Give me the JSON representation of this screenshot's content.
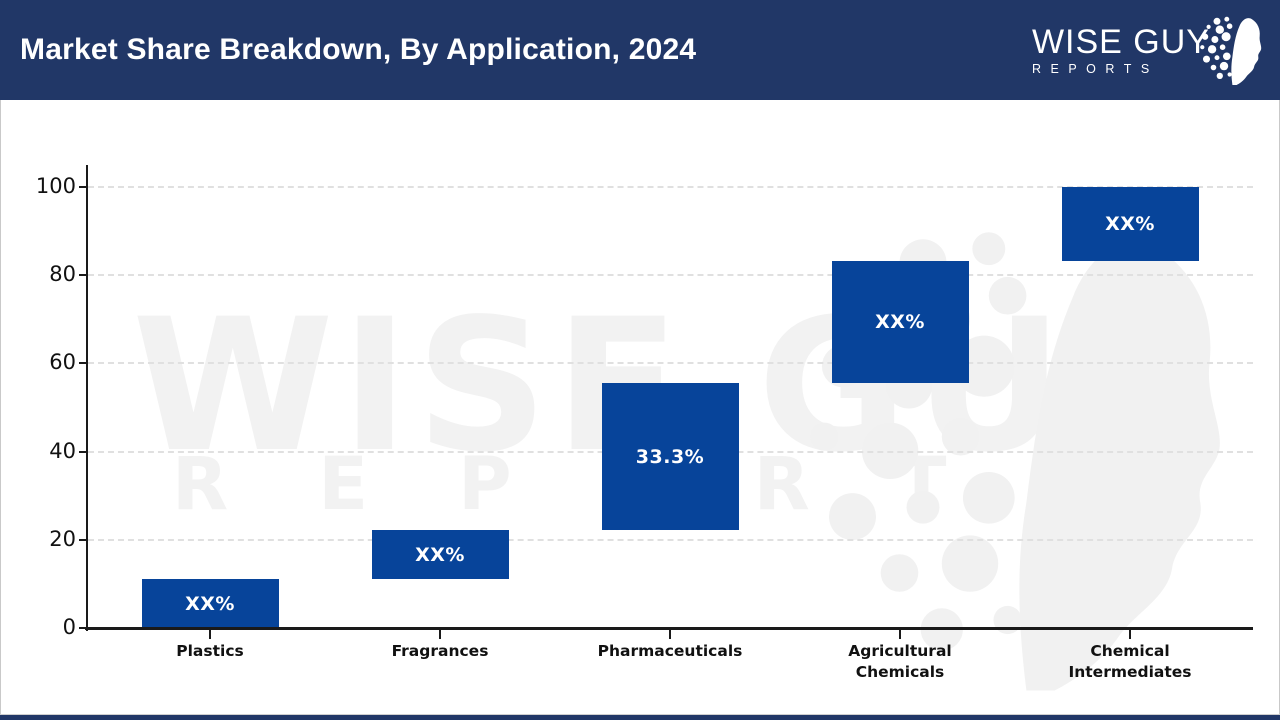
{
  "header": {
    "title": "Market Share Breakdown, By Application, 2024",
    "logo": {
      "line1": "WISE GUY",
      "line2": "REPORTS"
    }
  },
  "watermark": {
    "line1": "WISE GUY",
    "line2": "REPORTS"
  },
  "chart_data": {
    "type": "bar",
    "variant": "waterfall",
    "title": "Market Share Breakdown, By Application, 2024",
    "xlabel": "",
    "ylabel": "",
    "ylim": [
      0,
      105
    ],
    "yticks": [
      0,
      20,
      40,
      60,
      80,
      100
    ],
    "grid": "horizontal-dashed",
    "legend": "none",
    "bar_color": "#07449a",
    "categories": [
      {
        "lines": [
          "Plastics"
        ]
      },
      {
        "lines": [
          "Fragrances"
        ]
      },
      {
        "lines": [
          "Pharmaceuticals"
        ]
      },
      {
        "lines": [
          "Agricultural",
          "Chemicals"
        ]
      },
      {
        "lines": [
          "Chemical",
          "Intermediates"
        ]
      }
    ],
    "bars": [
      {
        "category": "Plastics",
        "start": 0,
        "end": 11.1,
        "value_label": "XX%"
      },
      {
        "category": "Fragrances",
        "start": 11.1,
        "end": 22.2,
        "value_label": "XX%"
      },
      {
        "category": "Pharmaceuticals",
        "start": 22.2,
        "end": 55.5,
        "value_label": "33.3%"
      },
      {
        "category": "Agricultural Chemicals",
        "start": 55.5,
        "end": 83.3,
        "value_label": "XX%"
      },
      {
        "category": "Chemical Intermediates",
        "start": 83.3,
        "end": 100,
        "value_label": "XX%"
      }
    ]
  }
}
